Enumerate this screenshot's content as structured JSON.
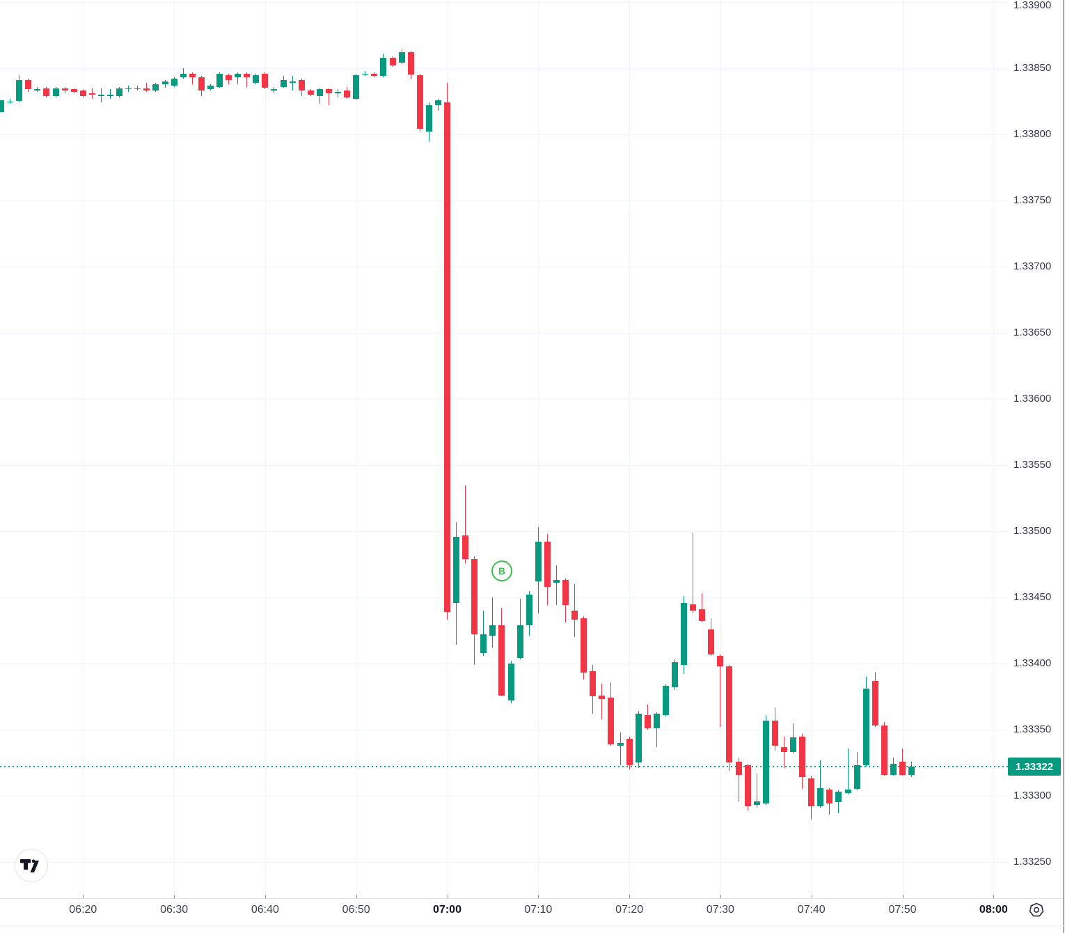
{
  "chart_data": {
    "type": "candlestick",
    "title": "",
    "grid": true,
    "ylim": [
      1.33222,
      1.33904
    ],
    "x_range": [
      "06:11",
      "07:51"
    ],
    "y_axis": {
      "labels": [
        "1.33900",
        "1.33850",
        "1.33800",
        "1.33750",
        "1.33700",
        "1.33650",
        "1.33600",
        "1.33550",
        "1.33500",
        "1.33450",
        "1.33400",
        "1.33350",
        "1.33300",
        "1.33250"
      ]
    },
    "x_axis": {
      "labels": [
        "06:20",
        "06:30",
        "06:40",
        "06:50",
        "07:00",
        "07:10",
        "07:20",
        "07:30",
        "07:40",
        "07:50",
        "08:00"
      ],
      "bold_labels": [
        "07:00",
        "08:00"
      ]
    },
    "candles_format": [
      "time",
      "open",
      "high",
      "low",
      "close"
    ],
    "candles": [
      [
        "06:11",
        1.33817,
        1.33826,
        1.33817,
        1.33826
      ],
      [
        "06:12",
        1.33825,
        1.33827,
        1.33823,
        1.33825
      ],
      [
        "06:13",
        1.33825,
        1.33845,
        1.33824,
        1.33841
      ],
      [
        "06:14",
        1.33841,
        1.33842,
        1.33832,
        1.33834
      ],
      [
        "06:15",
        1.33834,
        1.33836,
        1.33832,
        1.33834
      ],
      [
        "06:16",
        1.33835,
        1.33836,
        1.33828,
        1.33829
      ],
      [
        "06:17",
        1.33829,
        1.33836,
        1.33828,
        1.33835
      ],
      [
        "06:18",
        1.33835,
        1.33836,
        1.33831,
        1.33833
      ],
      [
        "06:19",
        1.33834,
        1.33835,
        1.33831,
        1.33832
      ],
      [
        "06:20",
        1.33833,
        1.33834,
        1.33828,
        1.33829
      ],
      [
        "06:21",
        1.33831,
        1.33835,
        1.33827,
        1.3383
      ],
      [
        "06:22",
        1.3383,
        1.33835,
        1.33824,
        1.3383
      ],
      [
        "06:23",
        1.3383,
        1.33834,
        1.33827,
        1.3383
      ],
      [
        "06:24",
        1.33829,
        1.33836,
        1.33828,
        1.33835
      ],
      [
        "06:25",
        1.33834,
        1.33837,
        1.33832,
        1.33835
      ],
      [
        "06:26",
        1.33835,
        1.33837,
        1.33833,
        1.33835
      ],
      [
        "06:27",
        1.33835,
        1.33839,
        1.33832,
        1.33833
      ],
      [
        "06:28",
        1.33833,
        1.33839,
        1.33832,
        1.33838
      ],
      [
        "06:29",
        1.33838,
        1.33841,
        1.33835,
        1.3384
      ],
      [
        "06:30",
        1.33837,
        1.33843,
        1.33836,
        1.33842
      ],
      [
        "06:31",
        1.33843,
        1.3385,
        1.33842,
        1.33846
      ],
      [
        "06:32",
        1.33846,
        1.33847,
        1.33838,
        1.33843
      ],
      [
        "06:33",
        1.33843,
        1.33844,
        1.33829,
        1.33833
      ],
      [
        "06:34",
        1.33834,
        1.33838,
        1.33833,
        1.33837
      ],
      [
        "06:35",
        1.33836,
        1.33847,
        1.33835,
        1.33846
      ],
      [
        "06:36",
        1.33845,
        1.33846,
        1.33838,
        1.33841
      ],
      [
        "06:37",
        1.33843,
        1.33847,
        1.33838,
        1.33846
      ],
      [
        "06:38",
        1.33846,
        1.33847,
        1.33836,
        1.33843
      ],
      [
        "06:39",
        1.33839,
        1.33846,
        1.33838,
        1.33845
      ],
      [
        "06:40",
        1.33846,
        1.33847,
        1.33834,
        1.33835
      ],
      [
        "06:41",
        1.33834,
        1.33836,
        1.33831,
        1.33834
      ],
      [
        "06:42",
        1.33836,
        1.33844,
        1.33835,
        1.33841
      ],
      [
        "06:43",
        1.3384,
        1.33844,
        1.33833,
        1.3384
      ],
      [
        "06:44",
        1.33841,
        1.33842,
        1.33829,
        1.33833
      ],
      [
        "06:45",
        1.33833,
        1.33834,
        1.33829,
        1.3383
      ],
      [
        "06:46",
        1.33829,
        1.33835,
        1.33823,
        1.33834
      ],
      [
        "06:47",
        1.33834,
        1.33835,
        1.33822,
        1.33831
      ],
      [
        "06:48",
        1.33832,
        1.33834,
        1.33828,
        1.33832
      ],
      [
        "06:49",
        1.33833,
        1.33836,
        1.33827,
        1.33828
      ],
      [
        "06:50",
        1.33827,
        1.33846,
        1.33826,
        1.33845
      ],
      [
        "06:51",
        1.33846,
        1.33848,
        1.33844,
        1.33846
      ],
      [
        "06:52",
        1.33846,
        1.33847,
        1.33843,
        1.33844
      ],
      [
        "06:53",
        1.33844,
        1.33861,
        1.33843,
        1.33858
      ],
      [
        "06:54",
        1.33858,
        1.33859,
        1.33851,
        1.33852
      ],
      [
        "06:55",
        1.33854,
        1.33864,
        1.33853,
        1.33862
      ],
      [
        "06:56",
        1.33862,
        1.33863,
        1.33842,
        1.33845
      ],
      [
        "06:57",
        1.33845,
        1.33846,
        1.33802,
        1.33804
      ],
      [
        "06:58",
        1.33802,
        1.33824,
        1.33794,
        1.33822
      ],
      [
        "06:59",
        1.33822,
        1.33827,
        1.33818,
        1.33826
      ],
      [
        "07:00",
        1.33824,
        1.33839,
        1.33433,
        1.33439
      ],
      [
        "07:01",
        1.33446,
        1.33507,
        1.33414,
        1.33496
      ],
      [
        "07:02",
        1.33497,
        1.33535,
        1.33476,
        1.33479
      ],
      [
        "07:03",
        1.33479,
        1.33481,
        1.33399,
        1.33422
      ],
      [
        "07:04",
        1.33408,
        1.3344,
        1.33406,
        1.33422
      ],
      [
        "07:05",
        1.33421,
        1.3345,
        1.33412,
        1.33429
      ],
      [
        "07:06",
        1.33429,
        1.33442,
        1.33375,
        1.33376
      ],
      [
        "07:07",
        1.33372,
        1.33402,
        1.3337,
        1.334
      ],
      [
        "07:08",
        1.33404,
        1.33449,
        1.33403,
        1.33429
      ],
      [
        "07:09",
        1.33429,
        1.33455,
        1.33421,
        1.33452
      ],
      [
        "07:10",
        1.33462,
        1.33503,
        1.33438,
        1.33492
      ],
      [
        "07:11",
        1.33492,
        1.33498,
        1.33444,
        1.33458
      ],
      [
        "07:12",
        1.33461,
        1.33474,
        1.33444,
        1.33463
      ],
      [
        "07:13",
        1.33463,
        1.33464,
        1.33431,
        1.33444
      ],
      [
        "07:14",
        1.3344,
        1.3346,
        1.3342,
        1.33433
      ],
      [
        "07:15",
        1.33434,
        1.33436,
        1.33388,
        1.33393
      ],
      [
        "07:16",
        1.33394,
        1.33399,
        1.33362,
        1.33375
      ],
      [
        "07:17",
        1.33376,
        1.33385,
        1.33358,
        1.33373
      ],
      [
        "07:18",
        1.33374,
        1.33386,
        1.33338,
        1.33339
      ],
      [
        "07:19",
        1.33338,
        1.33348,
        1.33323,
        1.3334
      ],
      [
        "07:20",
        1.33343,
        1.33345,
        1.3332,
        1.33323
      ],
      [
        "07:21",
        1.33325,
        1.33364,
        1.33321,
        1.33362
      ],
      [
        "07:22",
        1.33361,
        1.33369,
        1.3335,
        1.33351
      ],
      [
        "07:23",
        1.33351,
        1.33363,
        1.33337,
        1.33362
      ],
      [
        "07:24",
        1.33361,
        1.33384,
        1.3336,
        1.33383
      ],
      [
        "07:25",
        1.33382,
        1.33403,
        1.3338,
        1.33401
      ],
      [
        "07:26",
        1.33399,
        1.33451,
        1.33392,
        1.33446
      ],
      [
        "07:27",
        1.33445,
        1.33499,
        1.33438,
        1.3344
      ],
      [
        "07:28",
        1.33441,
        1.33453,
        1.33431,
        1.33432
      ],
      [
        "07:29",
        1.33426,
        1.33434,
        1.33406,
        1.33407
      ],
      [
        "07:30",
        1.33406,
        1.33407,
        1.33352,
        1.33398
      ],
      [
        "07:31",
        1.33398,
        1.33399,
        1.33319,
        1.33325
      ],
      [
        "07:32",
        1.33326,
        1.33329,
        1.33296,
        1.33316
      ],
      [
        "07:33",
        1.33323,
        1.33324,
        1.33289,
        1.33292
      ],
      [
        "07:34",
        1.33293,
        1.33317,
        1.33291,
        1.33296
      ],
      [
        "07:35",
        1.33294,
        1.33361,
        1.33293,
        1.33357
      ],
      [
        "07:36",
        1.33357,
        1.33367,
        1.33334,
        1.33338
      ],
      [
        "07:37",
        1.33337,
        1.33345,
        1.33321,
        1.33333
      ],
      [
        "07:38",
        1.33333,
        1.33355,
        1.33332,
        1.33344
      ],
      [
        "07:39",
        1.33345,
        1.33347,
        1.33305,
        1.33314
      ],
      [
        "07:40",
        1.33313,
        1.33315,
        1.33282,
        1.33292
      ],
      [
        "07:41",
        1.33292,
        1.33327,
        1.33291,
        1.33306
      ],
      [
        "07:42",
        1.33305,
        1.33306,
        1.33286,
        1.33294
      ],
      [
        "07:43",
        1.33295,
        1.33304,
        1.33287,
        1.33303
      ],
      [
        "07:44",
        1.33302,
        1.33336,
        1.33301,
        1.33305
      ],
      [
        "07:45",
        1.33305,
        1.33333,
        1.33304,
        1.33323
      ],
      [
        "07:46",
        1.33323,
        1.3339,
        1.33322,
        1.33381
      ],
      [
        "07:47",
        1.33387,
        1.33393,
        1.33352,
        1.33353
      ],
      [
        "07:48",
        1.33353,
        1.33356,
        1.33315,
        1.33316
      ],
      [
        "07:49",
        1.33316,
        1.33329,
        1.33315,
        1.33324
      ],
      [
        "07:50",
        1.33326,
        1.33336,
        1.33315,
        1.33316
      ],
      [
        "07:51",
        1.33316,
        1.33326,
        1.33314,
        1.33322
      ]
    ],
    "current_price": {
      "label": "1.33322",
      "value": 1.33322
    },
    "marker": {
      "label": "B",
      "time": "07:06",
      "price": 1.3347
    },
    "colors": {
      "up": "#089981",
      "down": "#F23645",
      "grid": "#F0F3FA",
      "axis_text": "#363A45",
      "axis_text_strong": "#131722",
      "price_line": "#089981",
      "badge_bg": "#089981",
      "badge_text": "#FFFFFF",
      "marker_green": "#3CBE50",
      "separator": "#E0E3EB"
    },
    "legend_position": "none"
  },
  "branding": {
    "logo_name": "tradingview-logo"
  }
}
